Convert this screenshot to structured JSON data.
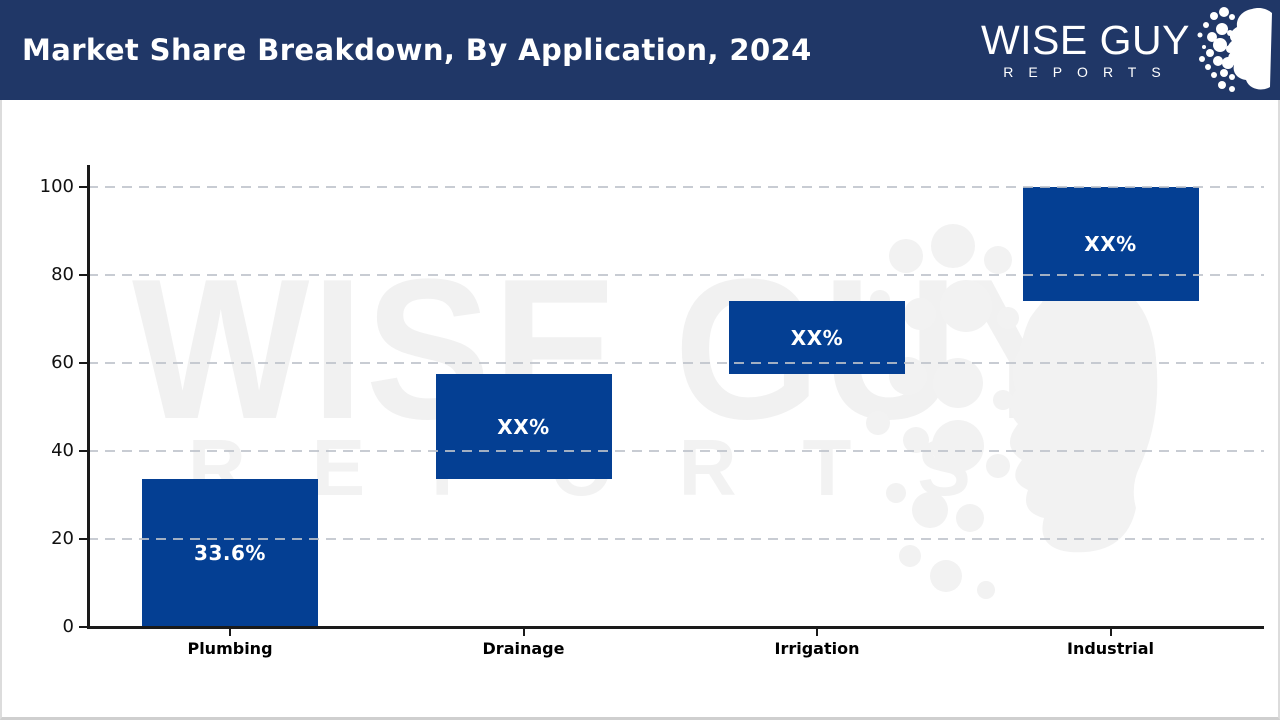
{
  "header": {
    "title": "Market Share Breakdown, By Application, 2024",
    "bg_color": "#203767",
    "logo": {
      "line1": "WISE GUY",
      "line2": "REPORTS"
    }
  },
  "watermark": {
    "line1": "WISE GUY",
    "line2": "REPORTS"
  },
  "chart_data": {
    "type": "bar",
    "subtype": "waterfall",
    "title": "Market Share Breakdown, By Application, 2024",
    "categories": [
      "Plumbing",
      "Drainage",
      "Irrigation",
      "Industrial"
    ],
    "segments": [
      {
        "category": "Plumbing",
        "start": 0,
        "end": 33.6,
        "label": "33.6%"
      },
      {
        "category": "Drainage",
        "start": 33.6,
        "end": 57.5,
        "label": "XX%"
      },
      {
        "category": "Irrigation",
        "start": 57.5,
        "end": 74,
        "label": "XX%"
      },
      {
        "category": "Industrial",
        "start": 74,
        "end": 100,
        "label": "XX%"
      }
    ],
    "bar_color": "#043f93",
    "label_color": "#ffffff",
    "xlabel": "",
    "ylabel": "",
    "ylim": [
      0,
      100
    ],
    "yticks": [
      0,
      20,
      40,
      60,
      80,
      100
    ],
    "grid": "horizontal-dashed",
    "legend": "none"
  }
}
